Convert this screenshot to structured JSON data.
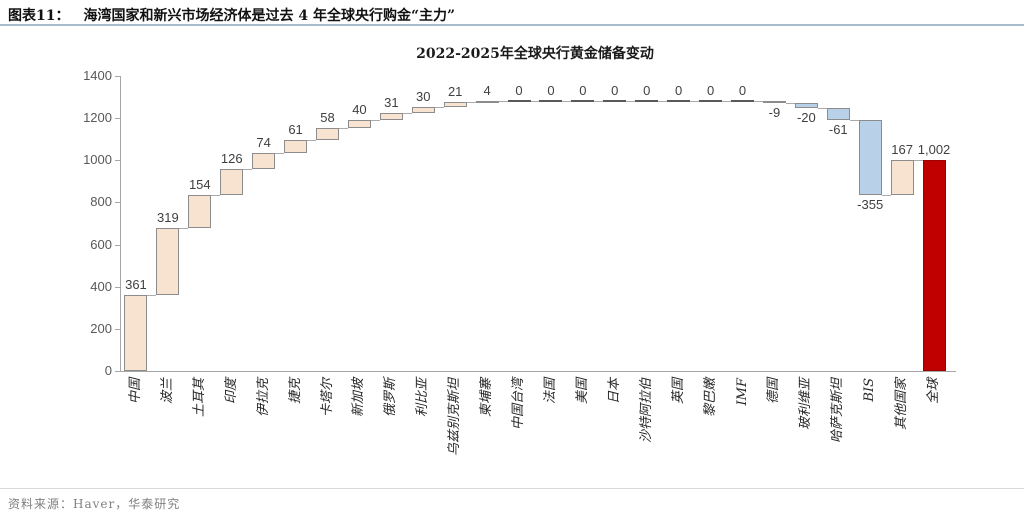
{
  "header": {
    "tag": "图表11：",
    "title": "海湾国家和新兴市场经济体是过去 4 年全球央行购金“主力”"
  },
  "footer": {
    "source": "资料来源：Haver，华泰研究"
  },
  "chart_data": {
    "type": "bar",
    "subtype": "waterfall",
    "title": "2022-2025年全球央行黄金储备变动",
    "categories": [
      "中国",
      "波兰",
      "土耳其",
      "印度",
      "伊拉克",
      "捷克",
      "卡塔尔",
      "新加坡",
      "俄罗斯",
      "利比亚",
      "乌兹别克斯坦",
      "柬埔寨",
      "中国台湾",
      "法国",
      "美国",
      "日本",
      "沙特阿拉伯",
      "英国",
      "黎巴嫩",
      "IMF",
      "德国",
      "玻利维亚",
      "哈萨克斯坦",
      "BIS",
      "其他国家",
      "全球"
    ],
    "values": [
      361,
      319,
      154,
      126,
      74,
      61,
      58,
      40,
      31,
      30,
      21,
      4,
      0,
      0,
      0,
      0,
      0,
      0,
      0,
      0,
      -9,
      -20,
      -61,
      -355,
      167,
      1002
    ],
    "labels": [
      "361",
      "319",
      "154",
      "126",
      "74",
      "61",
      "58",
      "40",
      "31",
      "30",
      "21",
      "4",
      "0",
      "0",
      "0",
      "0",
      "0",
      "0",
      "0",
      "0",
      "-9",
      "-20",
      "-61",
      "-355",
      "167",
      "1,002"
    ],
    "kinds": [
      "delta",
      "delta",
      "delta",
      "delta",
      "delta",
      "delta",
      "delta",
      "delta",
      "delta",
      "delta",
      "delta",
      "delta",
      "delta",
      "delta",
      "delta",
      "delta",
      "delta",
      "delta",
      "delta",
      "delta",
      "delta",
      "delta",
      "delta",
      "delta",
      "delta",
      "total"
    ],
    "xlabel": "",
    "ylabel": "",
    "ylim": [
      0,
      1400
    ],
    "yticks": [
      0,
      200,
      400,
      600,
      800,
      1000,
      1200,
      1400
    ],
    "grid": false,
    "legend": null,
    "colors": {
      "increase": "#f8e2d0",
      "decrease": "#b9d1e8",
      "total": "#c00000",
      "bar_border": "#8c8c8c",
      "zero_dash": "#595959",
      "connector": "#ababab",
      "axis": "#a6a6a6",
      "tick_label": "#595959",
      "data_label": "#3f3f3f"
    }
  }
}
